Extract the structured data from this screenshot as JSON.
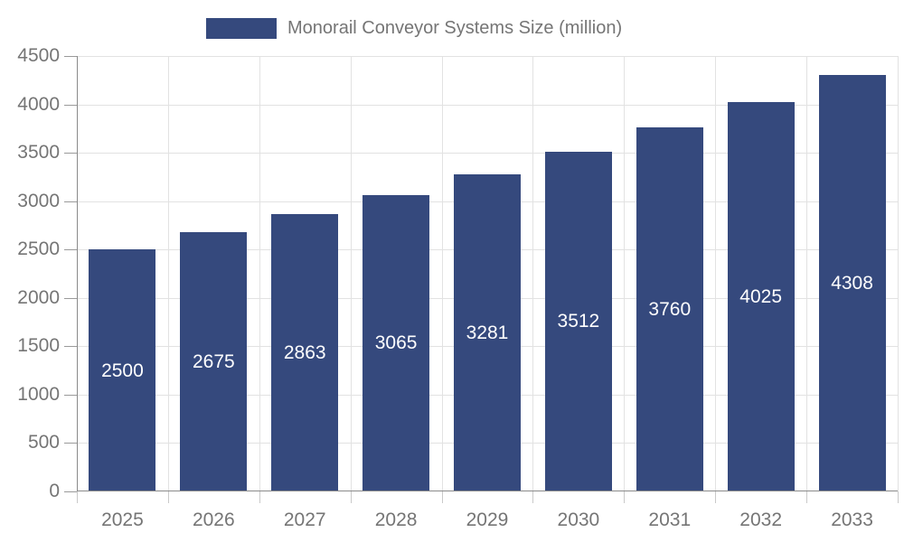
{
  "legend": {
    "label": "Monorail Conveyor Systems Size (million)"
  },
  "chart_data": {
    "type": "bar",
    "title": "Monorail Conveyor Systems Size (million)",
    "categories": [
      "2025",
      "2026",
      "2027",
      "2028",
      "2029",
      "2030",
      "2031",
      "2032",
      "2033"
    ],
    "values": [
      2500,
      2675,
      2863,
      3065,
      3281,
      3512,
      3760,
      4025,
      4308
    ],
    "series": [
      {
        "name": "Monorail Conveyor Systems Size (million)",
        "values": [
          2500,
          2675,
          2863,
          3065,
          3281,
          3512,
          3760,
          4025,
          4308
        ]
      }
    ],
    "xlabel": "",
    "ylabel": "",
    "ylim": [
      0,
      4500
    ],
    "yticks": [
      0,
      500,
      1000,
      1500,
      2000,
      2500,
      3000,
      3500,
      4000,
      4500
    ],
    "grid": true,
    "legend_position": "top",
    "value_labels": "inside-center"
  },
  "colors": {
    "bar": "#35497D",
    "value_label": "#FFFFFF",
    "axis_text": "#757575",
    "axis_line": "#8A8A8A",
    "gridline": "#E2E2E2",
    "tick": "#C9C9C9",
    "background": "#FFFFFF"
  }
}
